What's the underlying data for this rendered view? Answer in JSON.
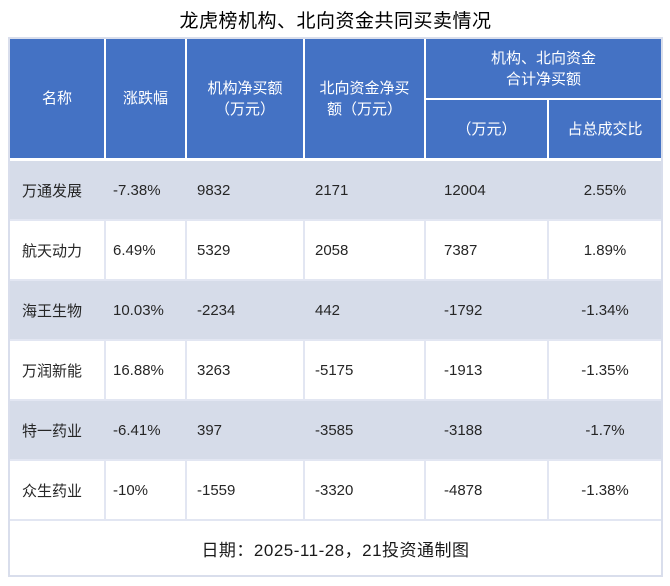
{
  "title": "龙虎榜机构、北向资金共同买卖情况",
  "colors": {
    "header_bg": "#4472C4",
    "header_text": "#FFFFFF",
    "band_row_bg": "#D6DCE9",
    "grid_border": "#E2E6F2",
    "outer_border": "#D9DEEC",
    "body_text": "#262626"
  },
  "header": {
    "name": "名称",
    "change": "涨跌幅",
    "inst_line1": "机构净买额",
    "inst_line2": "（万元）",
    "north_line1": "北向资金净买",
    "north_line2": "额（万元）",
    "combined_line1": "机构、北向资金",
    "combined_line2": "合计净买额",
    "combined_unit": "（万元）",
    "combined_ratio": "占总成交比"
  },
  "rows": [
    {
      "name": "万通发展",
      "change": "-7.38%",
      "inst": "9832",
      "north": "2171",
      "total": "12004",
      "ratio": "2.55%"
    },
    {
      "name": "航天动力",
      "change": "6.49%",
      "inst": "5329",
      "north": "2058",
      "total": "7387",
      "ratio": "1.89%"
    },
    {
      "name": "海王生物",
      "change": "10.03%",
      "inst": "-2234",
      "north": "442",
      "total": "-1792",
      "ratio": "-1.34%"
    },
    {
      "name": "万润新能",
      "change": "16.88%",
      "inst": "3263",
      "north": "-5175",
      "total": "-1913",
      "ratio": "-1.35%"
    },
    {
      "name": "特一药业",
      "change": "-6.41%",
      "inst": "397",
      "north": "-3585",
      "total": "-3188",
      "ratio": "-1.7%"
    },
    {
      "name": "众生药业",
      "change": "-10%",
      "inst": "-1559",
      "north": "-3320",
      "total": "-4878",
      "ratio": "-1.38%"
    }
  ],
  "footer": "日期：2025-11-28，21投资通制图",
  "chart_data": {
    "type": "table",
    "title": "龙虎榜机构、北向资金共同买卖情况",
    "columns": [
      "名称",
      "涨跌幅",
      "机构净买额（万元）",
      "北向资金净买额（万元）",
      "机构、北向资金合计净买额（万元）",
      "机构、北向资金合计净买额占总成交比"
    ],
    "rows": [
      [
        "万通发展",
        "-7.38%",
        9832,
        2171,
        12004,
        "2.55%"
      ],
      [
        "航天动力",
        "6.49%",
        5329,
        2058,
        7387,
        "1.89%"
      ],
      [
        "海王生物",
        "10.03%",
        -2234,
        442,
        -1792,
        "-1.34%"
      ],
      [
        "万润新能",
        "16.88%",
        3263,
        -5175,
        -1913,
        "-1.35%"
      ],
      [
        "特一药业",
        "-6.41%",
        397,
        -3585,
        -3188,
        "-1.7%"
      ],
      [
        "众生药业",
        "-10%",
        -1559,
        -3320,
        -4878,
        "-1.38%"
      ]
    ],
    "note": "日期：2025-11-28，21投资通制图"
  }
}
